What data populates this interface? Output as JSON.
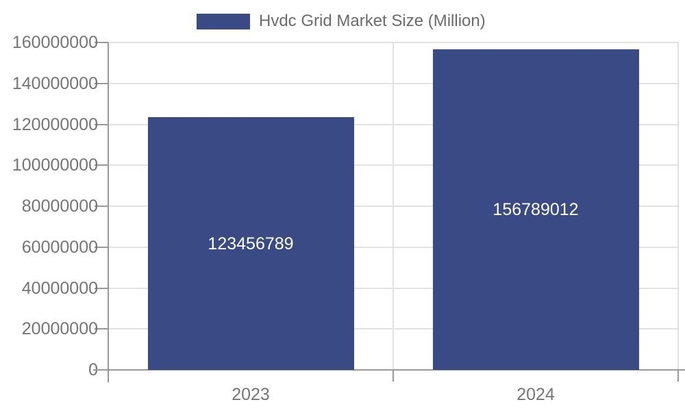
{
  "legend": {
    "label": "Hvdc Grid Market Size (Million)"
  },
  "chart_data": {
    "type": "bar",
    "title": "Hvdc Grid Market Size (Million)",
    "categories": [
      "2023",
      "2024"
    ],
    "values": [
      123456789,
      156789012
    ],
    "data_labels": [
      "123456789",
      "156789012"
    ],
    "xlabel": "",
    "ylabel": "",
    "ylim": [
      0,
      160000000
    ],
    "ytick_interval": 20000000,
    "ytick_labels": [
      "0",
      "20000000",
      "40000000",
      "60000000",
      "80000000",
      "100000000",
      "120000000",
      "140000000",
      "160000000"
    ],
    "grid": true,
    "legend_position": "top-center",
    "data_label_position": "inside-center",
    "colors": {
      "bar": "#394a84",
      "bar_label": "#ffffff",
      "gridline": "#e2e2e2",
      "axis": "#999999",
      "tick_text": "#757575",
      "legend_text": "#6b6b6b"
    }
  }
}
